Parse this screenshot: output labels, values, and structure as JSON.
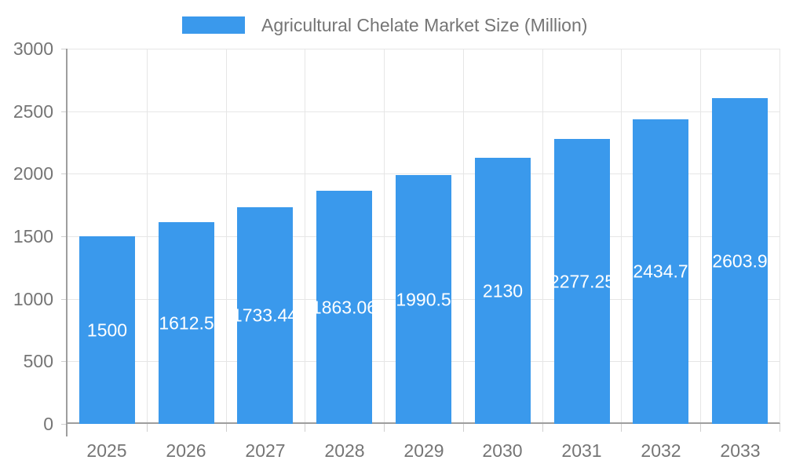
{
  "legend": {
    "label": "Agricultural Chelate Market Size (Million)"
  },
  "colors": {
    "bar": "#3A99EC",
    "text": "#757575",
    "grid": "#E6E6E6",
    "axis": "#9E9E9E",
    "tick": "#CFCFCF",
    "bar_label": "#FFFFFF",
    "background": "#FFFFFF"
  },
  "chart_data": {
    "type": "bar",
    "title": "Agricultural Chelate Market Size (Million)",
    "series_name": "Agricultural Chelate Market Size (Million)",
    "categories": [
      "2025",
      "2026",
      "2027",
      "2028",
      "2029",
      "2030",
      "2031",
      "2032",
      "2033"
    ],
    "values": [
      1500,
      1612.5,
      1733.44,
      1863.06,
      1990.5,
      2130,
      2277.25,
      2434.7,
      2603.9
    ],
    "bar_value_labels": [
      "1500",
      "1612.5",
      "1733.44",
      "1863.06",
      "1990.5",
      "2130",
      "2277.25",
      "2434.7",
      "2603.9"
    ],
    "xlabel": "",
    "ylabel": "",
    "ylim": [
      0,
      3000
    ],
    "y_ticks": [
      0,
      500,
      1000,
      1500,
      2000,
      2500,
      3000
    ],
    "grid": true,
    "legend_position": "top",
    "value_labels_position": "inside-center",
    "value_labels_color": "#FFFFFF"
  }
}
